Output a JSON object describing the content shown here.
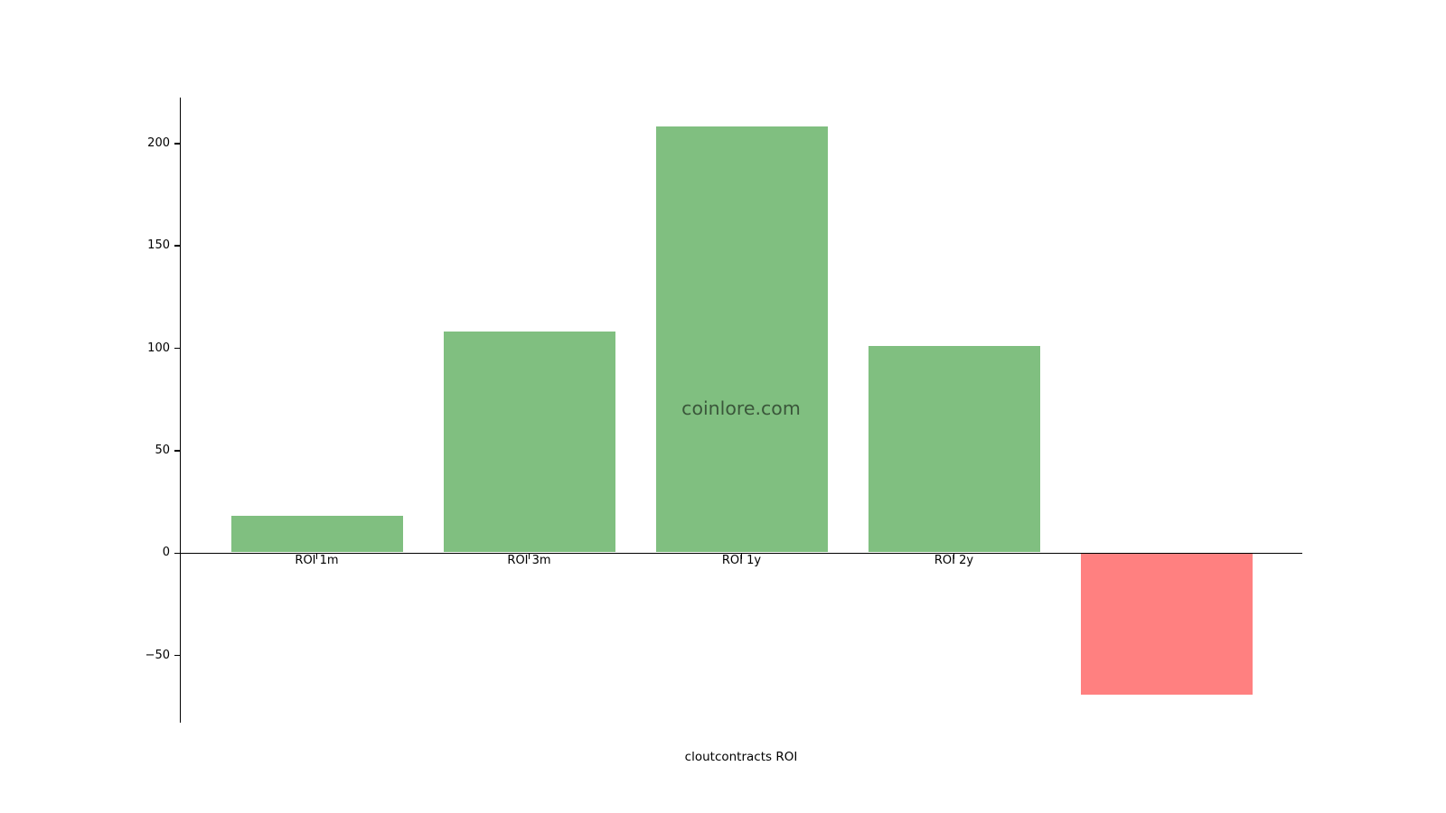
{
  "watermark_text": "coinlore.com",
  "chart_data": {
    "type": "bar",
    "title": "cloutcontracts ROI",
    "title_position": "bottom-center",
    "categories": [
      "ROI 1m",
      "ROI 3m",
      "ROI 1y",
      "ROI 2y",
      ""
    ],
    "values": [
      18,
      108,
      208,
      101,
      -69
    ],
    "yticks": [
      200,
      150,
      100,
      50,
      0,
      -50
    ],
    "ytick_labels": [
      "200",
      "150",
      "100",
      "50",
      "0",
      "−50"
    ],
    "ylim": [
      -83,
      222
    ],
    "xlabel": "",
    "ylabel": "",
    "grid": false,
    "legend": "none",
    "positive_color": "#80bf80",
    "negative_color": "#ff8080",
    "axis_color": "#000000",
    "watermark": "coinlore.com",
    "notes": "fifth bar label hidden behind negative bar"
  }
}
